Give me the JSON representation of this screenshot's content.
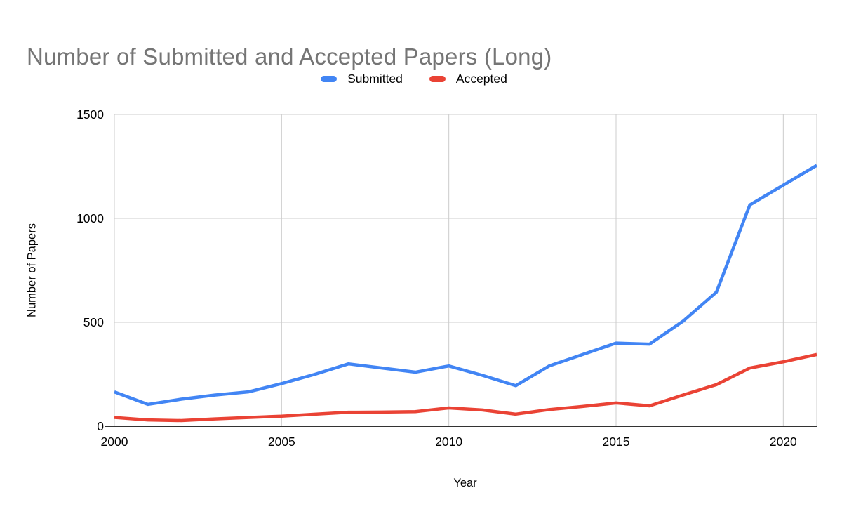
{
  "chart": {
    "title": "Number of Submitted and Accepted Papers (Long)",
    "title_color": "#757575"
  },
  "legend": {
    "items": [
      {
        "label": "Submitted",
        "color": "#4285F4"
      },
      {
        "label": "Accepted",
        "color": "#EA4335"
      }
    ]
  },
  "chart_data": {
    "type": "line",
    "title": "Number of Submitted and Accepted Papers (Long)",
    "xlabel": "Year",
    "ylabel": "Number of Papers",
    "x": [
      2000,
      2001,
      2002,
      2003,
      2004,
      2005,
      2006,
      2007,
      2008,
      2009,
      2010,
      2011,
      2012,
      2013,
      2014,
      2015,
      2016,
      2017,
      2018,
      2019,
      2020,
      2021
    ],
    "series": [
      {
        "name": "Submitted",
        "color": "#4285F4",
        "values": [
          165,
          105,
          130,
          150,
          165,
          205,
          250,
          300,
          280,
          260,
          290,
          245,
          195,
          290,
          345,
          400,
          395,
          505,
          645,
          1065,
          1160,
          1255
        ]
      },
      {
        "name": "Accepted",
        "color": "#EA4335",
        "values": [
          42,
          30,
          27,
          35,
          42,
          48,
          58,
          67,
          68,
          70,
          88,
          78,
          58,
          80,
          95,
          112,
          98,
          150,
          200,
          280,
          310,
          345
        ]
      }
    ],
    "xlim": [
      2000,
      2021
    ],
    "ylim": [
      0,
      1500
    ],
    "xticks": [
      2000,
      2005,
      2010,
      2015,
      2020
    ],
    "yticks": [
      0,
      500,
      1000,
      1500
    ],
    "grid": true,
    "legend_position": "top",
    "line_width": 4.5,
    "colors": {
      "gridline": "#cccccc",
      "axis_line": "#333333",
      "tick_label": "#000000"
    }
  }
}
